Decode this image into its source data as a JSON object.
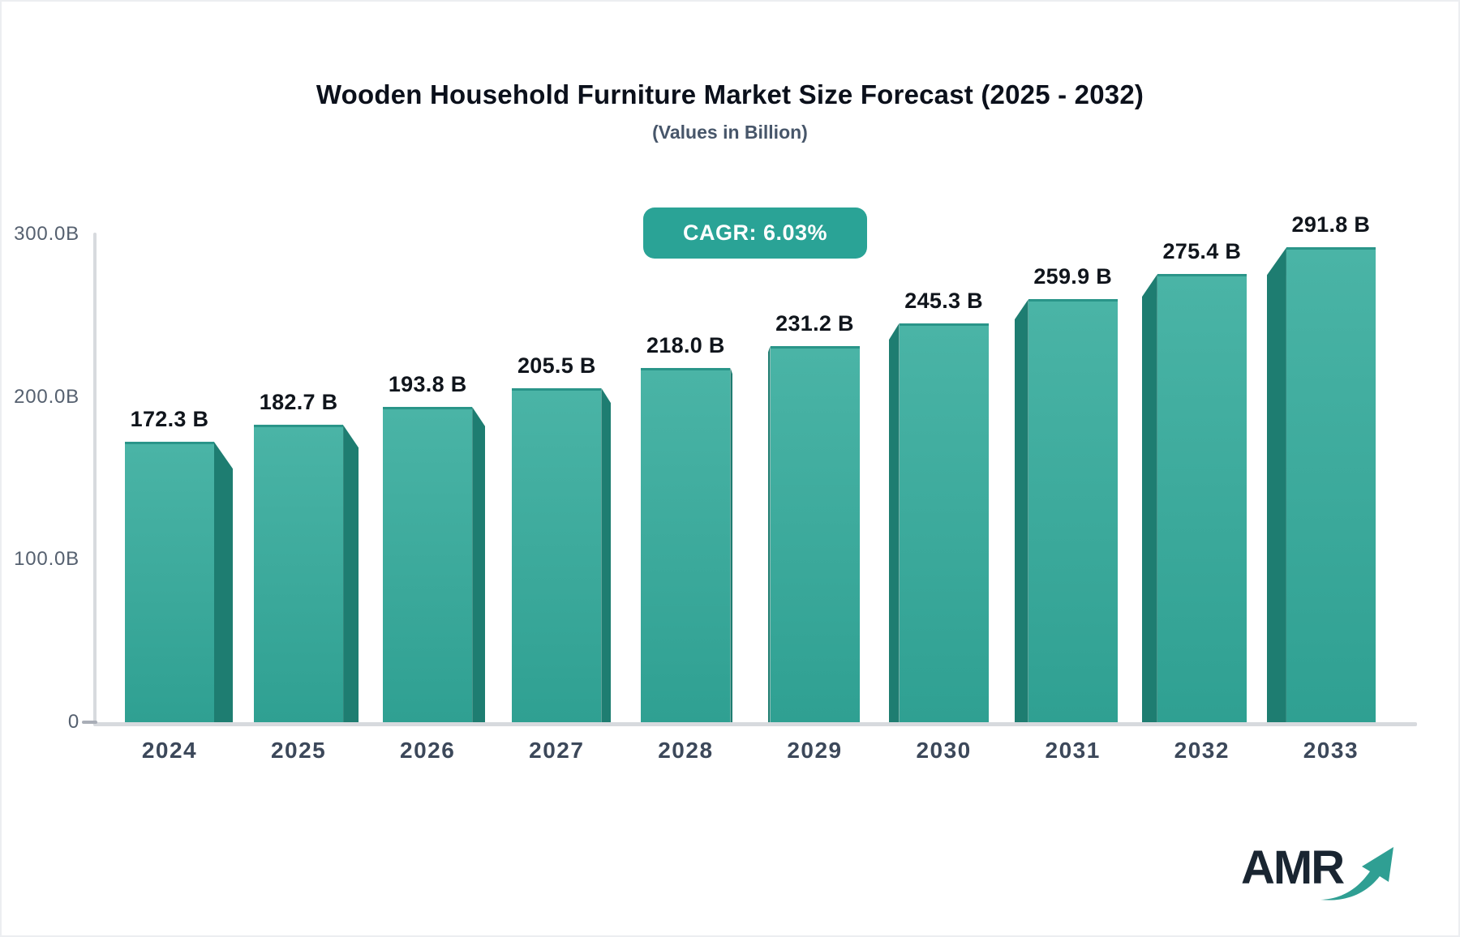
{
  "title": "Wooden Household Furniture Market Size Forecast (2025 - 2032)",
  "subtitle": "(Values in Billion)",
  "badge": {
    "label": "CAGR: 6.03%",
    "bg_color": "#2aa396",
    "text_color": "#ffffff"
  },
  "logo": {
    "text": "AMR",
    "text_color": "#192531",
    "arrow_color": "#2f9f93"
  },
  "chart_data": {
    "type": "bar",
    "title": "Wooden Household Furniture Market Size Forecast (2025 - 2032)",
    "subtitle": "(Values in Billion)",
    "categories": [
      "2024",
      "2025",
      "2026",
      "2027",
      "2028",
      "2029",
      "2030",
      "2031",
      "2032",
      "2033"
    ],
    "values": [
      172.3,
      182.7,
      193.8,
      205.5,
      218.0,
      231.2,
      245.3,
      259.9,
      275.4,
      291.8
    ],
    "value_labels": [
      "172.3 B",
      "182.7 B",
      "193.8 B",
      "205.5 B",
      "218.0 B",
      "231.2 B",
      "245.3 B",
      "259.9 B",
      "275.4 B",
      "291.8 B"
    ],
    "unit": "Billion",
    "xlabel": "",
    "ylabel": "",
    "ylim": [
      0,
      300
    ],
    "yticks": [
      {
        "label": "300.0B",
        "value": 300
      },
      {
        "label": "200.0B",
        "value": 200
      },
      {
        "label": "100.0B",
        "value": 100
      },
      {
        "label": "0",
        "value": 0
      }
    ],
    "grid": false,
    "legend_position": "none",
    "bar_color_top": "#4ab4a6",
    "bar_color_bottom": "#2fa092",
    "bar_side_color": "#1e7d71",
    "bar_3d_sides": [
      "right",
      "right",
      "right",
      "right",
      "right",
      "left",
      "left",
      "left",
      "left",
      "left"
    ],
    "bar_3d_depths": [
      23,
      19,
      16,
      12,
      3,
      3,
      13,
      17,
      19,
      24
    ]
  }
}
